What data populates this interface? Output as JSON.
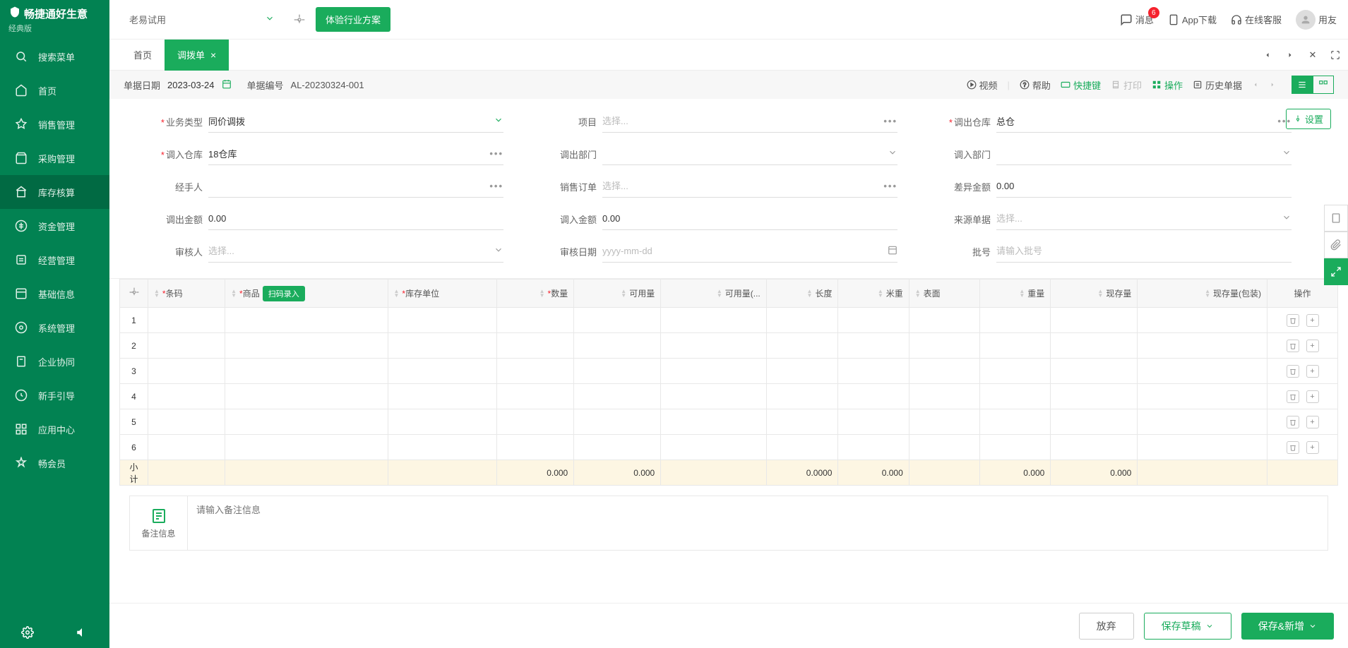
{
  "sidebar": {
    "logo_text": "畅捷通好生意",
    "logo_sub": "经典版",
    "items": [
      {
        "label": "搜索菜单",
        "icon": "search"
      },
      {
        "label": "首页",
        "icon": "home"
      },
      {
        "label": "销售管理",
        "icon": "sales"
      },
      {
        "label": "采购管理",
        "icon": "purchase"
      },
      {
        "label": "库存核算",
        "icon": "inventory"
      },
      {
        "label": "资金管理",
        "icon": "finance"
      },
      {
        "label": "经营管理",
        "icon": "business"
      },
      {
        "label": "基础信息",
        "icon": "basic"
      },
      {
        "label": "系统管理",
        "icon": "system"
      },
      {
        "label": "企业协同",
        "icon": "collab"
      },
      {
        "label": "新手引导",
        "icon": "guide"
      },
      {
        "label": "应用中心",
        "icon": "appcenter"
      },
      {
        "label": "畅会员",
        "icon": "member"
      }
    ],
    "active_index": 4
  },
  "topbar": {
    "trial_text": "老易试用",
    "industry_btn": "体验行业方案",
    "message": "消息",
    "message_count": "6",
    "app_download": "App下载",
    "online_cs": "在线客服",
    "username": "用友"
  },
  "tabs": {
    "items": [
      {
        "label": "首页",
        "closable": false
      },
      {
        "label": "调拨单",
        "closable": true
      }
    ],
    "active_index": 1
  },
  "toolbar": {
    "date_label": "单据日期",
    "date_value": "2023-03-24",
    "docno_label": "单据编号",
    "docno_value": "AL-20230324-001",
    "video": "视频",
    "help": "帮助",
    "shortcut": "快捷键",
    "print": "打印",
    "operate": "操作",
    "history": "历史单据"
  },
  "form": {
    "settings_btn": "设置",
    "rows": [
      [
        {
          "label": "业务类型",
          "required": true,
          "value": "同价调拨",
          "suffix": "chevron-green"
        },
        {
          "label": "项目",
          "required": false,
          "placeholder": "选择...",
          "suffix": "dots"
        },
        {
          "label": "调出仓库",
          "required": true,
          "value": "总仓",
          "suffix": "dots"
        }
      ],
      [
        {
          "label": "调入仓库",
          "required": true,
          "value": "18仓库",
          "suffix": "dots"
        },
        {
          "label": "调出部门",
          "required": false,
          "value": "",
          "suffix": "chevron"
        },
        {
          "label": "调入部门",
          "required": false,
          "value": "",
          "suffix": "chevron"
        }
      ],
      [
        {
          "label": "经手人",
          "required": false,
          "value": "",
          "suffix": "dots"
        },
        {
          "label": "销售订单",
          "required": false,
          "placeholder": "选择...",
          "suffix": "dots"
        },
        {
          "label": "差异金额",
          "required": false,
          "value": "0.00",
          "suffix": ""
        }
      ],
      [
        {
          "label": "调出金额",
          "required": false,
          "value": "0.00",
          "suffix": ""
        },
        {
          "label": "调入金额",
          "required": false,
          "value": "0.00",
          "suffix": ""
        },
        {
          "label": "来源单据",
          "required": false,
          "placeholder": "选择...",
          "suffix": "chevron"
        }
      ],
      [
        {
          "label": "审核人",
          "required": false,
          "placeholder": "选择...",
          "suffix": "chevron"
        },
        {
          "label": "审核日期",
          "required": false,
          "placeholder": "yyyy-mm-dd",
          "suffix": "calendar"
        },
        {
          "label": "批号",
          "required": false,
          "placeholder": "请输入批号",
          "suffix": ""
        }
      ]
    ]
  },
  "table": {
    "columns": [
      {
        "label": "条码",
        "required": true,
        "align": "left",
        "sort": true
      },
      {
        "label": "商品",
        "required": true,
        "align": "left",
        "sort": true,
        "scan_btn": "扫码录入"
      },
      {
        "label": "库存单位",
        "required": true,
        "align": "left",
        "sort": true
      },
      {
        "label": "数量",
        "required": true,
        "align": "right",
        "sort": true
      },
      {
        "label": "可用量",
        "required": false,
        "align": "right",
        "sort": true
      },
      {
        "label": "可用量(...",
        "required": false,
        "align": "right",
        "sort": true
      },
      {
        "label": "长度",
        "required": false,
        "align": "right",
        "sort": true
      },
      {
        "label": "米重",
        "required": false,
        "align": "right",
        "sort": true
      },
      {
        "label": "表面",
        "required": false,
        "align": "left",
        "sort": true
      },
      {
        "label": "重量",
        "required": false,
        "align": "right",
        "sort": true
      },
      {
        "label": "现存量",
        "required": false,
        "align": "right",
        "sort": true
      },
      {
        "label": "现存量(包装)",
        "required": false,
        "align": "right",
        "sort": true
      }
    ],
    "operate_label": "操作",
    "row_count": 6,
    "subtotal_label": "小计",
    "subtotal_values": [
      "",
      "",
      "",
      "0.000",
      "0.000",
      "",
      "0.0000",
      "0.000",
      "",
      "0.000",
      "0.000",
      ""
    ]
  },
  "remarks": {
    "title": "备注信息",
    "placeholder": "请输入备注信息"
  },
  "bottom": {
    "discard": "放弃",
    "save_draft": "保存草稿",
    "save_new": "保存&新增"
  },
  "colors": {
    "primary": "#1aac5c",
    "sidebar_bg": "#028252",
    "sidebar_active": "#016a43"
  }
}
